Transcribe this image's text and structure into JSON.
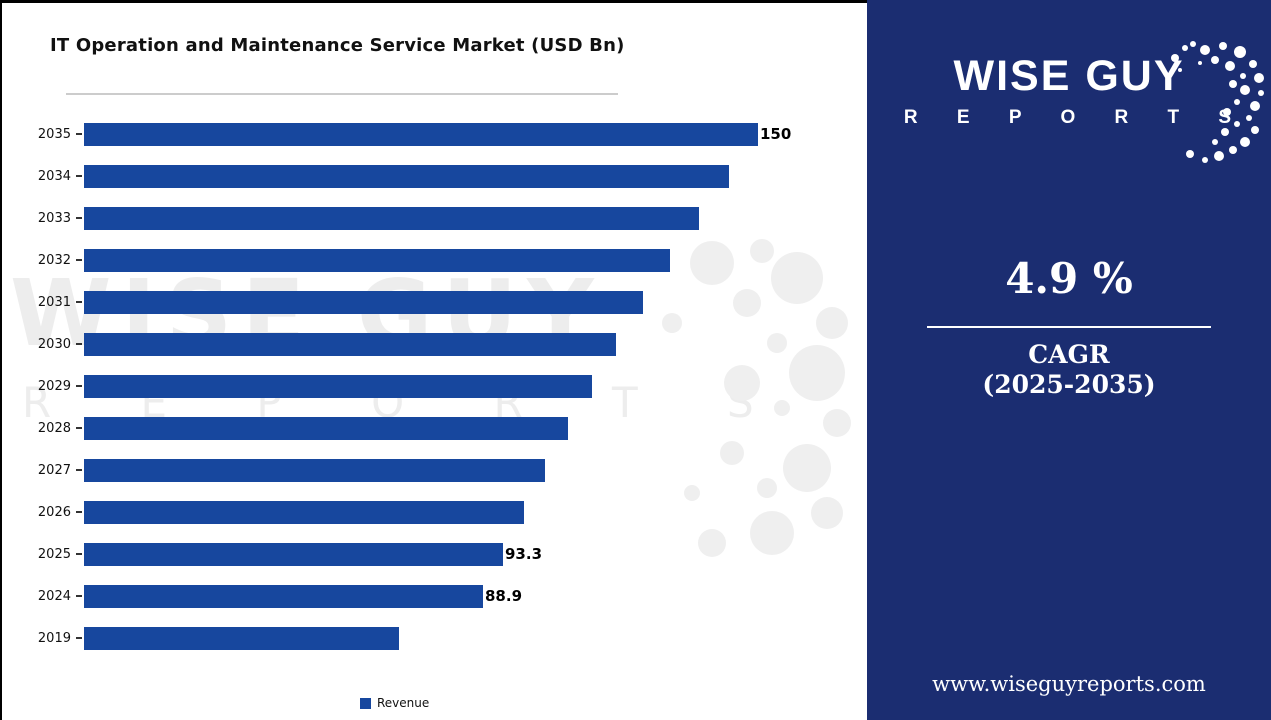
{
  "colors": {
    "bar": "#17479E",
    "panel": "#1B2D71",
    "watermark": "#EDEDED"
  },
  "chart": {
    "title": "IT Operation and Maintenance Service Market (USD Bn)",
    "legend_label": "Revenue"
  },
  "chart_data": {
    "type": "bar",
    "orientation": "horizontal",
    "title": "IT Operation and Maintenance Service Market (USD Bn)",
    "series_name": "Revenue",
    "categories": [
      "2035",
      "2034",
      "2033",
      "2032",
      "2031",
      "2030",
      "2029",
      "2028",
      "2027",
      "2026",
      "2025",
      "2024",
      "2019"
    ],
    "values": [
      150,
      143.5,
      136.8,
      130.4,
      124.3,
      118.5,
      113.0,
      107.7,
      102.7,
      97.9,
      93.3,
      88.9,
      70.0
    ],
    "bar_labels": [
      "150",
      "",
      "",
      "",
      "",
      "",
      "",
      "",
      "",
      "",
      "93.3",
      "88.9",
      ""
    ],
    "xlabel": "",
    "ylabel": "",
    "xlim": [
      0,
      160
    ],
    "grid": false,
    "legend_position": "bottom"
  },
  "panel": {
    "logo_line1": "WISE GUY",
    "logo_line2": "R E P O R T S",
    "cagr_value": "4.9 %",
    "cagr_label_line1": "CAGR",
    "cagr_label_line2": "(2025-2035)",
    "website": "www.wiseguyreports.com"
  },
  "watermark": {
    "line1": "WISE GUY",
    "line2": "R E P O R T S"
  }
}
